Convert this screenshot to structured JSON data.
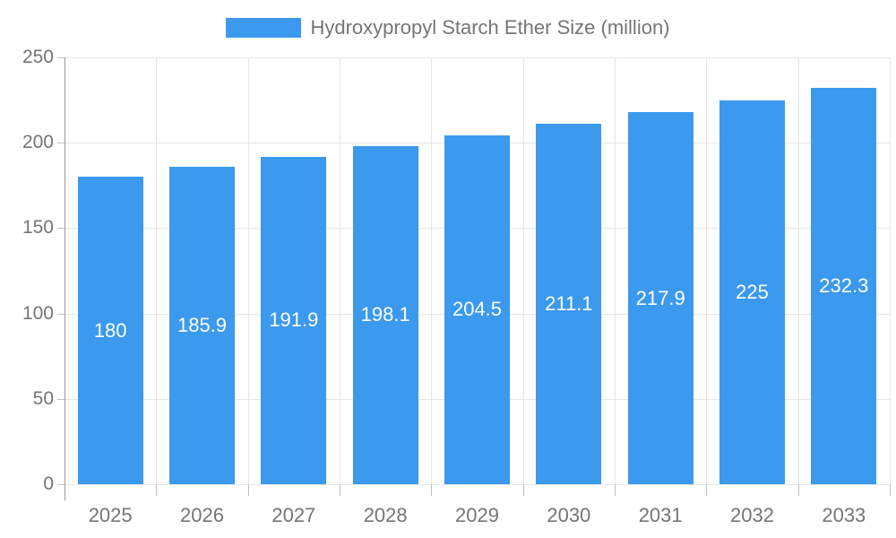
{
  "legend": {
    "label": "Hydroxypropyl Starch Ether Size (million)"
  },
  "chart_data": {
    "type": "bar",
    "title": "",
    "xlabel": "",
    "ylabel": "",
    "categories": [
      "2025",
      "2026",
      "2027",
      "2028",
      "2029",
      "2030",
      "2031",
      "2032",
      "2033"
    ],
    "series": [
      {
        "name": "Hydroxypropyl Starch Ether Size (million)",
        "values": [
          180,
          185.9,
          191.9,
          198.1,
          204.5,
          211.1,
          217.9,
          225,
          232.3
        ],
        "value_labels": [
          "180",
          "185.9",
          "191.9",
          "198.1",
          "204.5",
          "211.1",
          "217.9",
          "225",
          "232.3"
        ]
      }
    ],
    "ylim": [
      0,
      250
    ],
    "yticks": [
      0,
      50,
      100,
      150,
      200,
      250
    ],
    "grid": true,
    "legend_position": "top-center",
    "bar_label_position": "inside-middle",
    "colors": {
      "bar": "#3B99EE",
      "axis_text": "#757575",
      "bar_label_text": "#FFFFFF",
      "gridline": "#E6E6E6",
      "axis_line": "#9A9A9A",
      "tick": "#C0C0C0"
    }
  }
}
